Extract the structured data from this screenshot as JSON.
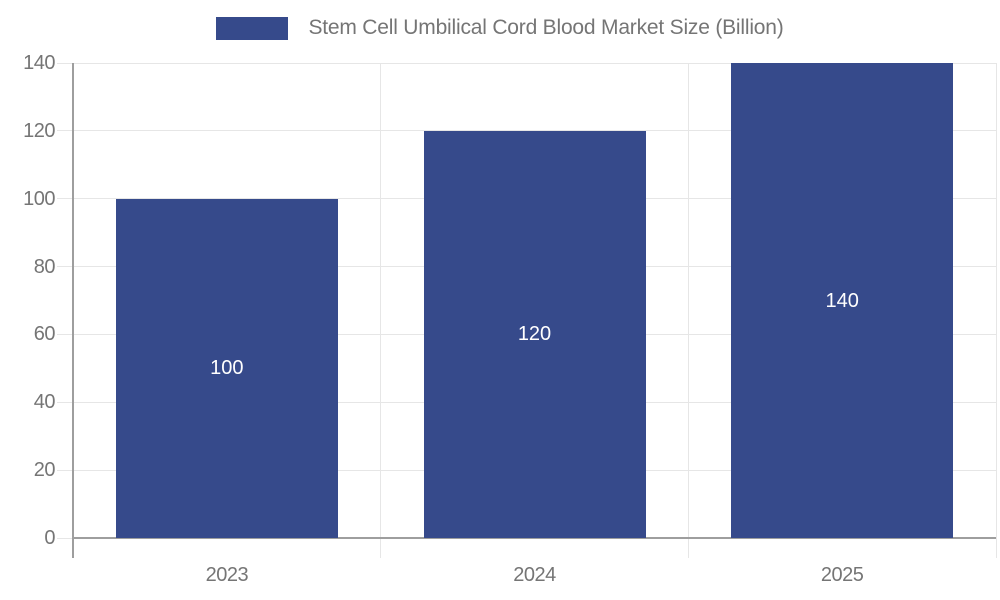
{
  "legend": {
    "label": "Stem Cell Umbilical Cord Blood Market Size (Billion)"
  },
  "chart_data": {
    "type": "bar",
    "title": "",
    "categories": [
      "2023",
      "2024",
      "2025"
    ],
    "series": [
      {
        "name": "Stem Cell Umbilical Cord Blood Market Size (Billion)",
        "values": [
          100,
          120,
          140
        ]
      }
    ],
    "value_labels": [
      "100",
      "120",
      "140"
    ],
    "yticks": [
      0,
      20,
      40,
      60,
      80,
      100,
      120,
      140
    ],
    "ylim": [
      0,
      140
    ],
    "xlabel": "",
    "ylabel": "",
    "grid": true,
    "legend_position": "top",
    "colors": {
      "bar": "#364a8b",
      "axis_label": "#757575",
      "legend_text": "#757575",
      "gridline": "#e6e6e6",
      "axis_line": "#9e9e9e",
      "value_label": "#ffffff",
      "background": "#ffffff"
    }
  }
}
